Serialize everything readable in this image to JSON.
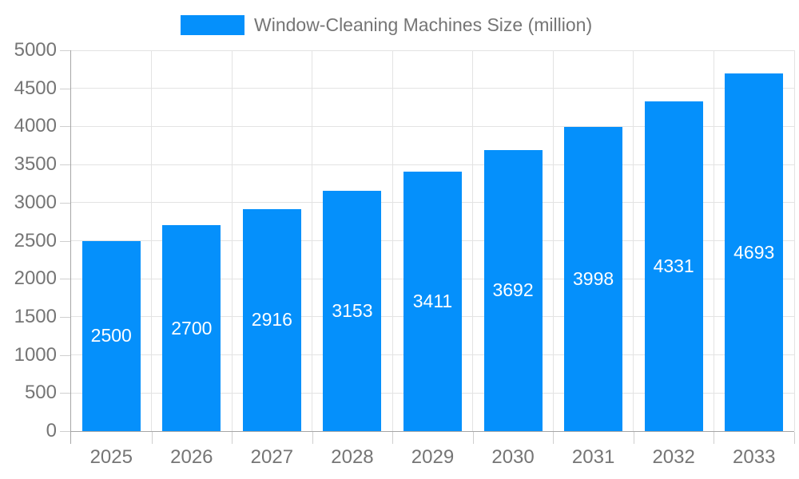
{
  "legend": {
    "label": "Window-Cleaning Machines Size (million)"
  },
  "colors": {
    "bar": "#0590fb",
    "axis_line": "#a6a6a6",
    "grid_line": "#e3e3e3",
    "tick_line": "#cfcfcf",
    "axis_text": "#757575",
    "bar_label": "#ffffff"
  },
  "chart_data": {
    "type": "bar",
    "title": "Window-Cleaning Machines Size (million)",
    "series_name": "Window-Cleaning Machines Size (million)",
    "categories": [
      "2025",
      "2026",
      "2027",
      "2028",
      "2029",
      "2030",
      "2031",
      "2032",
      "2033"
    ],
    "values": [
      2500,
      2700,
      2916,
      3153,
      3411,
      3692,
      3998,
      4331,
      4693
    ],
    "xlabel": "",
    "ylabel": "",
    "ylim": [
      0,
      5000
    ],
    "ytick_step": 500,
    "grid": true,
    "legend_position": "top",
    "value_labels": "inside-center"
  }
}
